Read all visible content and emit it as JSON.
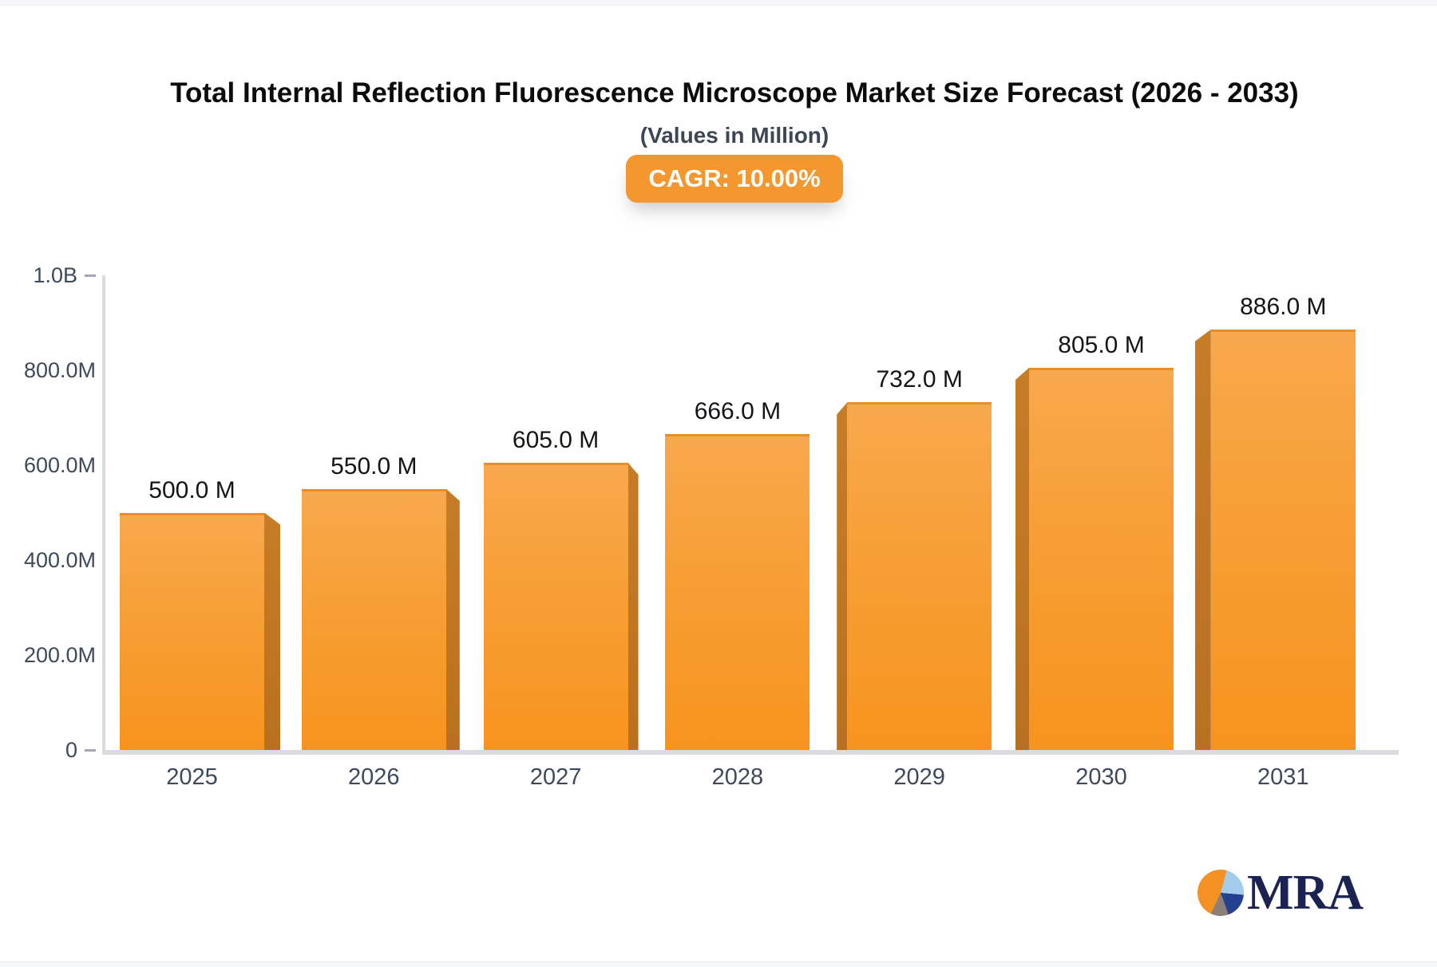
{
  "header": {
    "title": "Total Internal Reflection Fluorescence Microscope Market Size Forecast (2026 - 2033)",
    "subtitle": "(Values in Million)",
    "badge": "CAGR: 10.00%"
  },
  "chart_data": {
    "type": "bar",
    "title": "Total Internal Reflection Fluorescence Microscope Market Size Forecast (2026 - 2033)",
    "subtitle": "(Values in Million)",
    "cagr": "CAGR: 10.00%",
    "categories": [
      "2025",
      "2026",
      "2027",
      "2028",
      "2029",
      "2030",
      "2031"
    ],
    "values": [
      500,
      550,
      605,
      666,
      732,
      805,
      886
    ],
    "value_labels": [
      "500.0 M",
      "550.0 M",
      "605.0 M",
      "666.0 M",
      "732.0 M",
      "805.0 M",
      "886.0 M"
    ],
    "unit": "Million USD",
    "ylim": [
      0,
      1000
    ],
    "y_ticks": [
      {
        "label": "1.0B",
        "value": 1000,
        "dash": true
      },
      {
        "label": "800.0M",
        "value": 800,
        "dash": false
      },
      {
        "label": "600.0M",
        "value": 600,
        "dash": false
      },
      {
        "label": "400.0M",
        "value": 400,
        "dash": false
      },
      {
        "label": "200.0M",
        "value": 200,
        "dash": false
      },
      {
        "label": "0",
        "value": 0,
        "dash": true
      }
    ],
    "grid": false,
    "legend": "none",
    "colors": {
      "bar_face_top": "#f8a84d",
      "bar_face_bottom": "#f7941e",
      "bar_side": "#be7420",
      "axis_line": "#d9dbdf",
      "axis_label": "#3e4a5b",
      "value_label": "#141518",
      "badge_bg": "#f4972e",
      "badge_text": "#ffffff"
    }
  },
  "logo": {
    "text": "MRA"
  }
}
